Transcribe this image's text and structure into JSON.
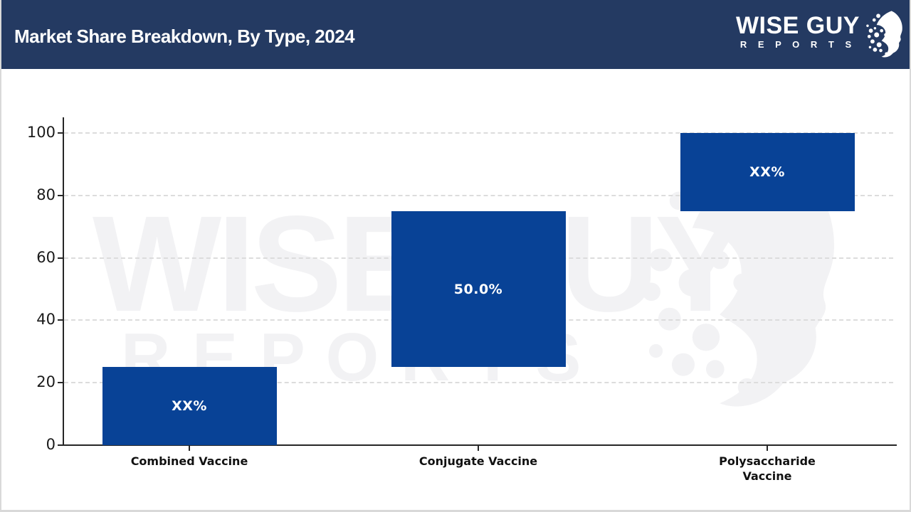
{
  "header": {
    "title": "Market Share Breakdown, By Type, 2024",
    "logo": {
      "brand_line1": "WISE GUY",
      "brand_line2": "R E P O R T S"
    }
  },
  "watermark": {
    "line1": "WISE GUY",
    "line2": "R E P O R T S"
  },
  "chart_data": {
    "type": "bar",
    "variant": "floating-segment-waterfall",
    "title": "Market Share Breakdown, By Type, 2024",
    "categories": [
      "Combined Vaccine",
      "Conjugate Vaccine",
      "Polysaccharide\nVaccine"
    ],
    "bars": [
      {
        "category": "Combined Vaccine",
        "start": 0,
        "end": 25,
        "value_label": "XX%"
      },
      {
        "category": "Conjugate Vaccine",
        "start": 25,
        "end": 75,
        "value_label": "50.0%"
      },
      {
        "category": "Polysaccharide Vaccine",
        "start": 75,
        "end": 100,
        "value_label": "XX%"
      }
    ],
    "xlabel": "",
    "ylabel": "",
    "ylim": [
      0,
      100
    ],
    "yticks": [
      0,
      20,
      40,
      60,
      80,
      100
    ],
    "grid": "horizontal-dashed",
    "legend": "none",
    "bar_color": "#084296"
  },
  "colors": {
    "header_bg": "#243a62",
    "bar": "#084296",
    "axis": "#262626",
    "gridline": "#dcdcdc",
    "tick_text": "#1a1a1a",
    "bar_label_text": "#ffffff",
    "watermark": "#f2f2f4",
    "frame_border": "#d9d9d9"
  }
}
